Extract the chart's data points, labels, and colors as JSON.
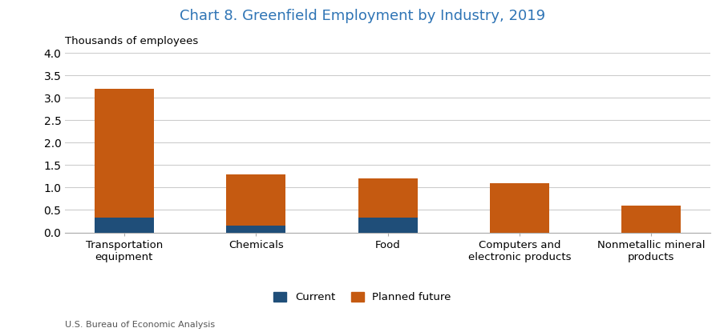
{
  "title": "Chart 8. Greenfield Employment by Industry, 2019",
  "ylabel": "Thousands of employees",
  "categories": [
    "Transportation\nequipment",
    "Chemicals",
    "Food",
    "Computers and\nelectronic products",
    "Nonmetallic mineral\nproducts"
  ],
  "current": [
    0.33,
    0.15,
    0.33,
    0.0,
    0.0
  ],
  "planned_future": [
    2.87,
    1.15,
    0.87,
    1.1,
    0.6
  ],
  "color_current": "#1f4e79",
  "color_planned": "#c55a11",
  "ylim": [
    0,
    4.0
  ],
  "yticks": [
    0.0,
    0.5,
    1.0,
    1.5,
    2.0,
    2.5,
    3.0,
    3.5,
    4.0
  ],
  "legend_labels": [
    "Current",
    "Planned future"
  ],
  "source": "U.S. Bureau of Economic Analysis",
  "title_color": "#2e74b5",
  "background_color": "#ffffff"
}
